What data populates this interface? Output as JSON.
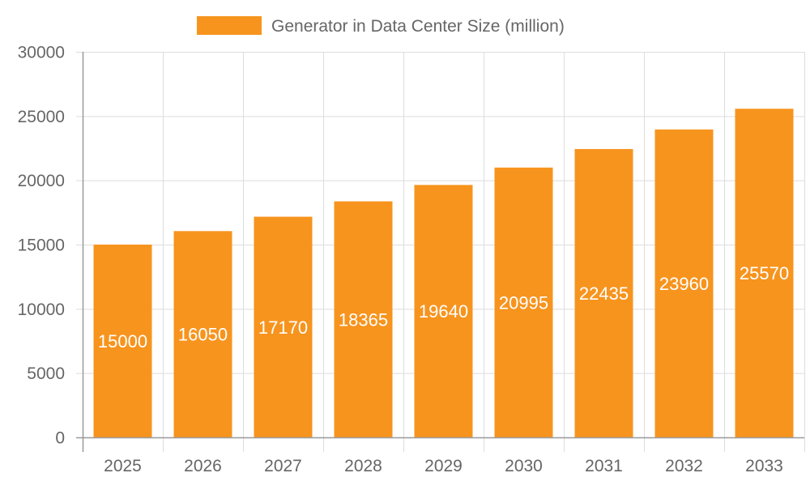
{
  "chart_data": {
    "type": "bar",
    "categories": [
      "2025",
      "2026",
      "2027",
      "2028",
      "2029",
      "2030",
      "2031",
      "2032",
      "2033"
    ],
    "series": [
      {
        "name": "Generator in Data Center Size (million)",
        "values": [
          15000,
          16050,
          17170,
          18365,
          19640,
          20995,
          22435,
          23960,
          25570
        ]
      }
    ],
    "ylim": [
      0,
      30000
    ],
    "yticks": [
      0,
      5000,
      10000,
      15000,
      20000,
      25000,
      30000
    ],
    "grid": true,
    "legend_position": "top",
    "data_labels": "inside-center",
    "colors": {
      "bar": "#f7941e",
      "grid": "#dddddd",
      "axis": "#999999",
      "text": "#666666",
      "label": "#ffffff"
    }
  }
}
